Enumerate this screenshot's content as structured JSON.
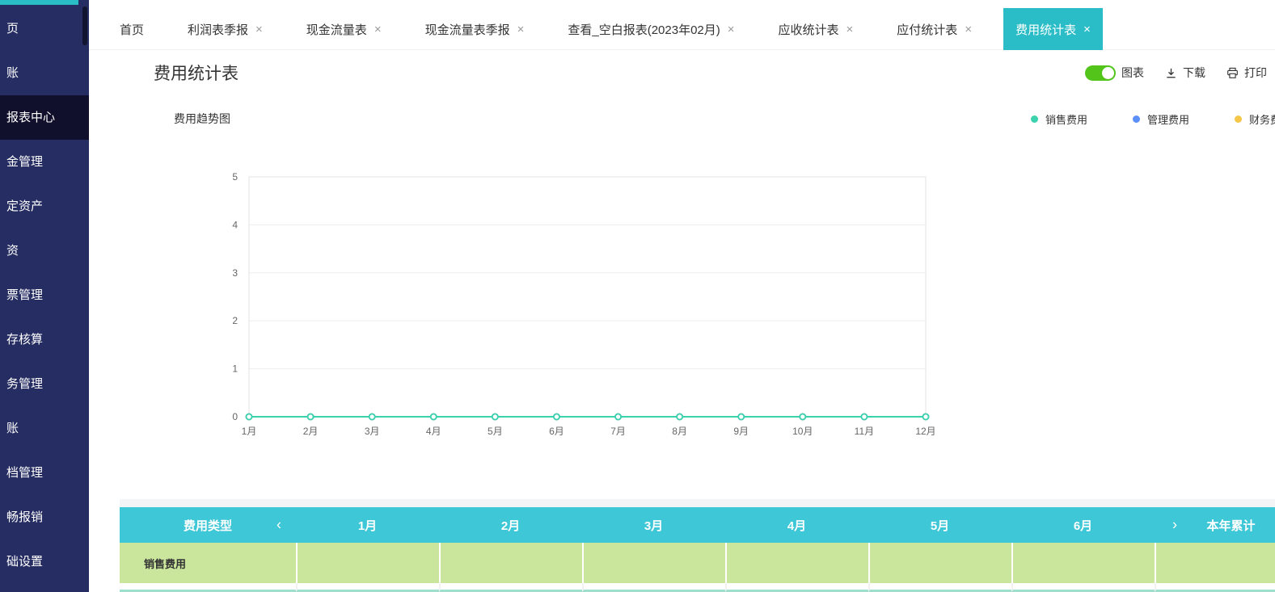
{
  "sidebar": {
    "items": [
      {
        "label": "页",
        "active": false
      },
      {
        "label": "账",
        "active": false
      },
      {
        "label": "报表中心",
        "active": true
      },
      {
        "label": "金管理",
        "active": false
      },
      {
        "label": "定资产",
        "active": false
      },
      {
        "label": "资",
        "active": false
      },
      {
        "label": "票管理",
        "active": false
      },
      {
        "label": "存核算",
        "active": false
      },
      {
        "label": "务管理",
        "active": false
      },
      {
        "label": "账",
        "active": false
      },
      {
        "label": "档管理",
        "active": false
      },
      {
        "label": "畅报销",
        "active": false
      },
      {
        "label": "础设置",
        "active": false
      }
    ]
  },
  "tabs": [
    {
      "label": "首页",
      "closable": false,
      "active": false
    },
    {
      "label": "利润表季报",
      "closable": true,
      "active": false
    },
    {
      "label": "现金流量表",
      "closable": true,
      "active": false
    },
    {
      "label": "现金流量表季报",
      "closable": true,
      "active": false
    },
    {
      "label": "查看_空白报表(2023年02月)",
      "closable": true,
      "active": false
    },
    {
      "label": "应收统计表",
      "closable": true,
      "active": false
    },
    {
      "label": "应付统计表",
      "closable": true,
      "active": false
    },
    {
      "label": "费用统计表",
      "closable": true,
      "active": true
    }
  ],
  "header": {
    "title": "费用统计表",
    "toggle_label": "图表",
    "toggle_on": true,
    "download_label": "下载",
    "print_label": "打印"
  },
  "chart": {
    "title": "费用趋势图",
    "legend": [
      {
        "label": "销售费用",
        "color": "#3bd2ae"
      },
      {
        "label": "管理费用",
        "color": "#5b8ff9"
      },
      {
        "label": "财务费用",
        "color": "#f5c648"
      }
    ]
  },
  "chart_data": {
    "type": "line",
    "title": "费用趋势图",
    "categories": [
      "1月",
      "2月",
      "3月",
      "4月",
      "5月",
      "6月",
      "7月",
      "8月",
      "9月",
      "10月",
      "11月",
      "12月"
    ],
    "series": [
      {
        "name": "销售费用",
        "color": "#3bd2ae",
        "values": [
          0,
          0,
          0,
          0,
          0,
          0,
          0,
          0,
          0,
          0,
          0,
          0
        ]
      },
      {
        "name": "管理费用",
        "color": "#5b8ff9",
        "values": [
          0,
          0,
          0,
          0,
          0,
          0,
          0,
          0,
          0,
          0,
          0,
          0
        ]
      },
      {
        "name": "财务费用",
        "color": "#f5c648",
        "values": [
          0,
          0,
          0,
          0,
          0,
          0,
          0,
          0,
          0,
          0,
          0,
          0
        ]
      }
    ],
    "xlabel": "",
    "ylabel": "",
    "ylim": [
      0,
      5
    ],
    "yticks": [
      0,
      1,
      2,
      3,
      4,
      5
    ],
    "grid": true,
    "legend_position": "top-right"
  },
  "table": {
    "header": {
      "first_col": "费用类型",
      "prev_icon": "‹",
      "months": [
        "1月",
        "2月",
        "3月",
        "4月",
        "5月",
        "6月"
      ],
      "next_icon": "›",
      "last_col": "本年累计"
    },
    "rows": [
      {
        "name": "销售费用",
        "values": [
          "",
          "",
          "",
          "",
          "",
          ""
        ],
        "total": ""
      }
    ]
  },
  "colors": {
    "accent_cyan": "#2abdc7",
    "table_header_cyan": "#3ec7d6",
    "row_green": "#c9e69c",
    "toggle_green": "#52c41a",
    "sidebar_bg": "#262d62",
    "sidebar_active_bg": "#10102d",
    "series_teal": "#3bd2ae",
    "series_blue": "#5b8ff9",
    "series_yellow": "#f5c648"
  }
}
